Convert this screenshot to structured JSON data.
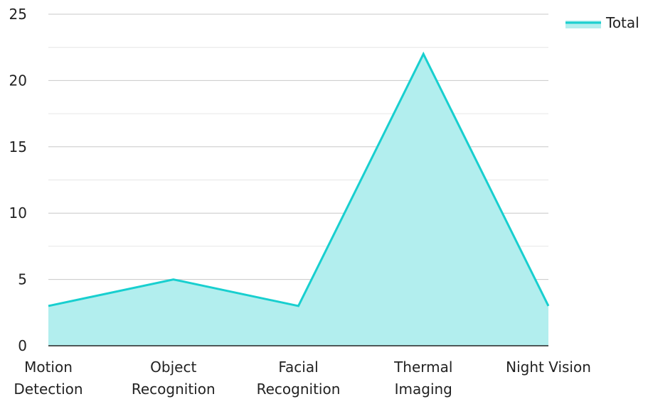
{
  "chart_data": {
    "type": "area",
    "categories": [
      [
        "Motion",
        "Detection"
      ],
      [
        "Object",
        "Recognition"
      ],
      [
        "Facial",
        "Recognition"
      ],
      [
        "Thermal",
        "Imaging"
      ],
      [
        "Night Vision"
      ]
    ],
    "series": [
      {
        "name": "Total",
        "values": [
          3,
          5,
          3,
          22,
          3
        ]
      }
    ],
    "ylim": [
      0,
      25
    ],
    "yticks": [
      0,
      5,
      10,
      15,
      20,
      25
    ],
    "grid": true,
    "legend": "top-right",
    "colors": {
      "line": "#18cfcf",
      "fill": "#b2eeee",
      "grid_major": "#c8c8c8",
      "grid_minor": "#e6e6e6",
      "axis": "#222222"
    }
  }
}
